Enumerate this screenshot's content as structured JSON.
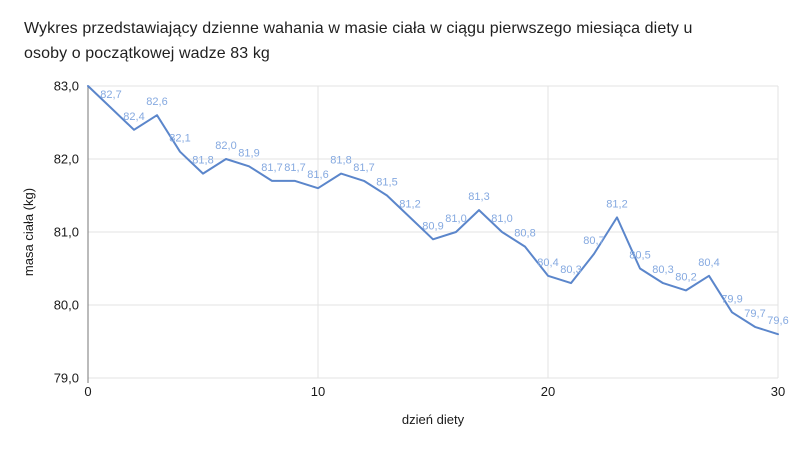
{
  "title": {
    "lines": [
      "Wykres przedstawiający dzienne wahania w masie ciała w ciągu pierwszego miesiąca diety u",
      "osoby o początkowej wadze 83 kg"
    ]
  },
  "chart_data": {
    "type": "line",
    "title": "Wykres przedstawiający dzienne wahania w masie ciała w ciągu pierwszego miesiąca diety u osoby o początkowej wadze 83 kg",
    "xlabel": "dzień diety",
    "ylabel": "masa ciała (kg)",
    "x": [
      0,
      1,
      2,
      3,
      4,
      5,
      6,
      7,
      8,
      9,
      10,
      11,
      12,
      13,
      14,
      15,
      16,
      17,
      18,
      19,
      20,
      21,
      22,
      23,
      24,
      25,
      26,
      27,
      28,
      29,
      30
    ],
    "values": [
      83.0,
      82.7,
      82.4,
      82.6,
      82.1,
      81.8,
      82.0,
      81.9,
      81.7,
      81.7,
      81.6,
      81.8,
      81.7,
      81.5,
      81.2,
      80.9,
      81.0,
      81.3,
      81.0,
      80.8,
      80.4,
      80.3,
      80.7,
      81.2,
      80.5,
      80.3,
      80.2,
      80.4,
      79.9,
      79.7,
      79.6
    ],
    "point_labels": [
      "",
      "82,7",
      "82,4",
      "82,6",
      "82,1",
      "81,8",
      "82,0",
      "81,9",
      "81,7",
      "81,7",
      "81,6",
      "81,8",
      "81,7",
      "81,5",
      "81,2",
      "80,9",
      "81,0",
      "81,3",
      "81,0",
      "80,8",
      "80,4",
      "80,3",
      "80,7",
      "81,2",
      "80,5",
      "80,3",
      "80,2",
      "80,4",
      "79,9",
      "79,7",
      "79,6"
    ],
    "xlim": [
      0,
      30
    ],
    "ylim": [
      79,
      83
    ],
    "x_ticks": {
      "values": [
        0,
        10,
        20,
        30
      ],
      "labels": [
        "0",
        "10",
        "20",
        "30"
      ]
    },
    "y_ticks": {
      "values": [
        79,
        80,
        81,
        82,
        83
      ],
      "labels": [
        "79,0",
        "80,0",
        "81,0",
        "82,0",
        "83,0"
      ]
    },
    "grid": true,
    "legend": "none",
    "colors": {
      "line": "#5b86cb",
      "point_label": "#85a9e0",
      "grid": "#e3e3e3",
      "axis": "#777777",
      "tick_text": "#1a1a1a",
      "axis_title_text": "#1a1a1a"
    }
  }
}
